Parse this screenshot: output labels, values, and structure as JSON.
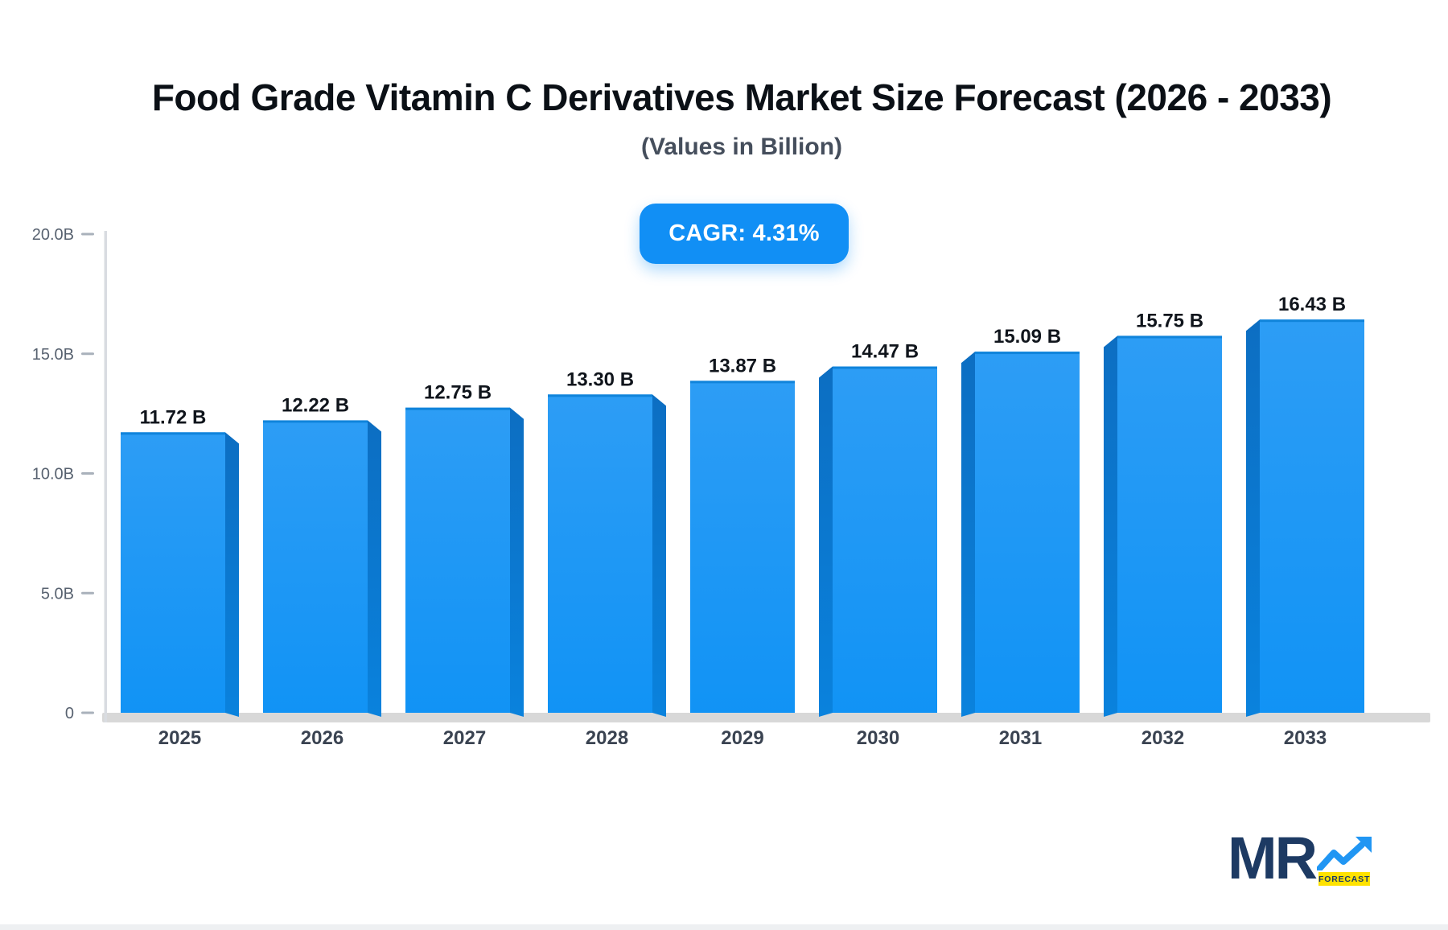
{
  "chart_data": {
    "type": "bar",
    "title": "Food Grade Vitamin C Derivatives Market Size Forecast (2026 - 2033)",
    "subtitle": "(Values in Billion)",
    "cagr_badge": "CAGR: 4.31%",
    "categories": [
      "2025",
      "2026",
      "2027",
      "2028",
      "2029",
      "2030",
      "2031",
      "2032",
      "2033"
    ],
    "values": [
      11.72,
      12.22,
      12.75,
      13.3,
      13.87,
      14.47,
      15.09,
      15.75,
      16.43
    ],
    "value_labels": [
      "11.72 B",
      "12.22 B",
      "12.75 B",
      "13.30 B",
      "13.87 B",
      "14.47 B",
      "15.09 B",
      "15.75 B",
      "16.43 B"
    ],
    "y_ticks": [
      {
        "value": 20,
        "label": "20.0B"
      },
      {
        "value": 15,
        "label": "15.0B"
      },
      {
        "value": 10,
        "label": "10.0B"
      },
      {
        "value": 5,
        "label": "5.0B"
      },
      {
        "value": 0,
        "label": "0"
      }
    ],
    "ylim": [
      0,
      20
    ],
    "grid": false,
    "legend": false,
    "colors": {
      "bar_face_top": "#2d9df5",
      "bar_face_bottom": "#1193f5",
      "bar_side_top": "#0c6ec2",
      "bar_side_bottom": "#0a82dd",
      "bar_top_edge": "#0d82d8",
      "axis_line": "#d9dce1",
      "tick_dash": "#a9b1bb",
      "tick_label": "#586270",
      "category_label": "#3a4351",
      "value_label": "#10151c",
      "floor": "#d8d8d8"
    }
  },
  "badge": {
    "bg": "#118ff5",
    "text_color": "#ffffff"
  },
  "logo": {
    "mr": "MR",
    "forecast": "FORECAST",
    "navy": "#1d3a63",
    "blue": "#2196f3",
    "yellow": "#ffe200"
  }
}
